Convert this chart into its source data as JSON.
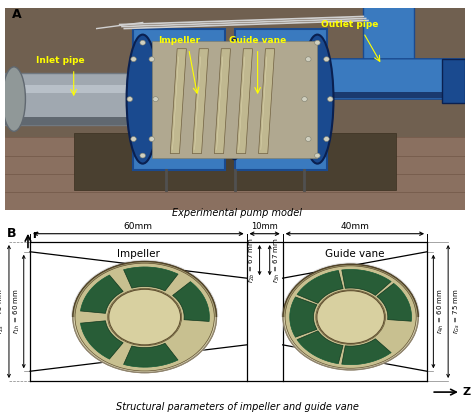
{
  "panel_A_label": "A",
  "panel_B_label": "B",
  "caption_A": "Experimental pump model",
  "caption_B": "Structural parameters of impeller and guide vane",
  "outlet_pipe": "Outlet pipe",
  "impeller_label": "Impeller",
  "guide_vane_label": "Guide vane",
  "inlet_pipe": "Inlet pipe",
  "photo_label_color": "#FFFF00",
  "dim_60mm": "60mm",
  "dim_10mm": "10mm",
  "dim_40mm": "40mm",
  "axis_r": "r",
  "axis_z": "Z",
  "bg_color": "#ffffff",
  "photo_bg": "#8a7a6a",
  "floor_color": "#5a4a3a",
  "wall_color": "#787060",
  "pump_blue": "#3a7abf",
  "pump_dark_blue": "#1a4a8f",
  "pipe_gray": "#a0a8b0",
  "inner_silver": "#b8b8a8",
  "blade_silver": "#909090",
  "outer_ring_color": "#c8c090",
  "inner_ring_color": "#d8d0a0",
  "blade_dark_green": "#1a5530",
  "blade_light_green": "#2a8050",
  "ring_edge_color": "#605030"
}
